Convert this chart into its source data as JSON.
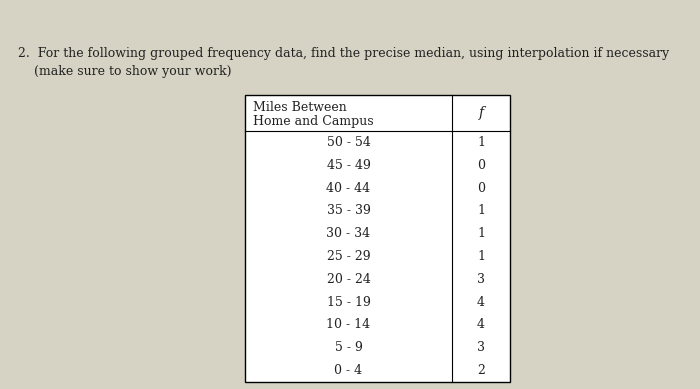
{
  "title_number": "2.",
  "title_text": "  For the following grouped frequency data, find the precise median, using interpolation if necessary",
  "subtitle_text": "    (make sure to show your work)",
  "col1_header_line1": "Miles Between",
  "col1_header_line2": "Home and Campus",
  "col2_header": "f",
  "rows": [
    [
      "50 - 54",
      "1"
    ],
    [
      "45 - 49",
      "0"
    ],
    [
      "40 - 44",
      "0"
    ],
    [
      "35 - 39",
      "1"
    ],
    [
      "30 - 34",
      "1"
    ],
    [
      "25 - 29",
      "1"
    ],
    [
      "20 - 24",
      "3"
    ],
    [
      "15 - 19",
      "4"
    ],
    [
      "10 - 14",
      "4"
    ],
    [
      "5 - 9",
      "3"
    ],
    [
      "0 - 4",
      "2"
    ]
  ],
  "bg_color": "#d6d3c4",
  "text_color": "#222222",
  "font_size_title": 9.0,
  "font_size_table": 9.0,
  "fig_width": 7.0,
  "fig_height": 3.89
}
